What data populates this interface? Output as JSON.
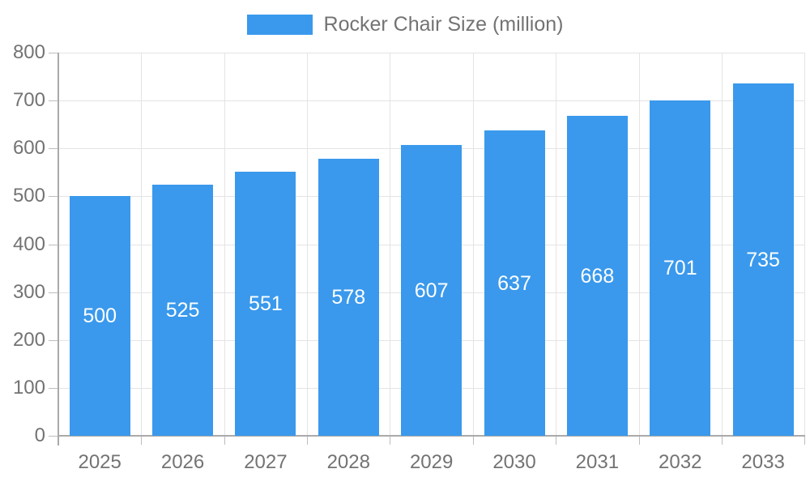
{
  "legend": {
    "label": "Rocker Chair Size (million)"
  },
  "colors": {
    "background": "#ffffff",
    "bar": "#3a99ec",
    "bar_label_text": "#ffffff",
    "grid": "#e4e4e4",
    "tick_mark": "#bdbdbd",
    "axis_line": "#aaaaaa",
    "tick_text": "#737373",
    "legend_text": "#737373"
  },
  "chart_data": {
    "type": "bar",
    "title": "",
    "categories": [
      "2025",
      "2026",
      "2027",
      "2028",
      "2029",
      "2030",
      "2031",
      "2032",
      "2033"
    ],
    "series": [
      {
        "name": "Rocker Chair Size (million)",
        "values": [
          500,
          525,
          551,
          578,
          607,
          637,
          668,
          701,
          735
        ]
      }
    ],
    "xlabel": "",
    "ylabel": "",
    "ylim": [
      0,
      800
    ],
    "ytick_step": 100,
    "yticks": [
      0,
      100,
      200,
      300,
      400,
      500,
      600,
      700,
      800
    ],
    "grid": true,
    "legend_position": "top",
    "value_labels_position": "inside-middle"
  }
}
